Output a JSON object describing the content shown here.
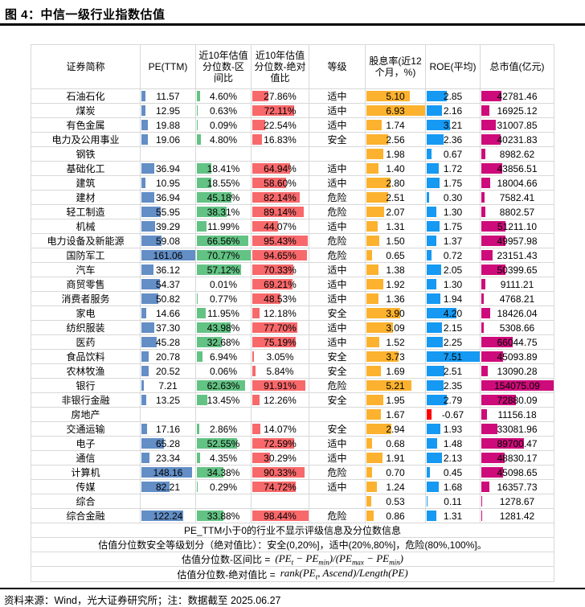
{
  "title": "图 4：中信一级行业指数估值",
  "footer": "资料来源：Wind，光大证券研究所；注：数据截至 2025.06.27",
  "colors": {
    "pe_bar": "#638EC6",
    "range_bar": "#63C384",
    "abs_bar": "#F8696B",
    "dividend_bar": "#FCB22E",
    "roe_bar": "#1599F2",
    "roe_negative_bar": "#FF0000",
    "mktcap_bar": "#CE0B7A",
    "grade_safe": "安全",
    "grade_medium": "适中",
    "grade_risky": "危险"
  },
  "table": {
    "headers": [
      "证券简称",
      "PE(TTM)",
      "近10年估值分位数-区间比",
      "近10年估值分位数-绝对值比",
      "等级",
      "股息率(近12个月，%)",
      "ROE(平均)",
      "总市值(亿元)"
    ],
    "rows": [
      {
        "name": "石油石化",
        "pe": 11.57,
        "range_pct": 4.6,
        "abs_pct": 27.86,
        "grade": "适中",
        "dividend": 5.1,
        "roe": 2.85,
        "mktcap": 42781.46
      },
      {
        "name": "煤炭",
        "pe": 12.95,
        "range_pct": 0.63,
        "abs_pct": 72.11,
        "grade": "适中",
        "dividend": 6.93,
        "roe": 2.16,
        "mktcap": 16925.12
      },
      {
        "name": "有色金属",
        "pe": 19.88,
        "range_pct": 0.09,
        "abs_pct": 22.54,
        "grade": "适中",
        "dividend": 1.74,
        "roe": 3.21,
        "mktcap": 31007.85
      },
      {
        "name": "电力及公用事业",
        "pe": 19.06,
        "range_pct": 4.8,
        "abs_pct": 16.83,
        "grade": "安全",
        "dividend": 2.56,
        "roe": 2.36,
        "mktcap": 40231.83
      },
      {
        "name": "钢铁",
        "pe": null,
        "range_pct": null,
        "abs_pct": null,
        "grade": "",
        "dividend": 1.98,
        "roe": 0.67,
        "mktcap": 8982.62
      },
      {
        "name": "基础化工",
        "pe": 36.94,
        "range_pct": 18.41,
        "abs_pct": 64.94,
        "grade": "适中",
        "dividend": 1.4,
        "roe": 1.72,
        "mktcap": 43856.51
      },
      {
        "name": "建筑",
        "pe": 10.95,
        "range_pct": 18.55,
        "abs_pct": 58.6,
        "grade": "适中",
        "dividend": 2.8,
        "roe": 1.75,
        "mktcap": 18004.66
      },
      {
        "name": "建材",
        "pe": 36.94,
        "range_pct": 45.18,
        "abs_pct": 82.14,
        "grade": "危险",
        "dividend": 2.51,
        "roe": 0.3,
        "mktcap": 7582.41
      },
      {
        "name": "轻工制造",
        "pe": 55.95,
        "range_pct": 38.31,
        "abs_pct": 89.14,
        "grade": "危险",
        "dividend": 2.07,
        "roe": 1.3,
        "mktcap": 8802.57
      },
      {
        "name": "机械",
        "pe": 39.29,
        "range_pct": 11.99,
        "abs_pct": 44.07,
        "grade": "适中",
        "dividend": 1.31,
        "roe": 1.75,
        "mktcap": 51211.1
      },
      {
        "name": "电力设备及新能源",
        "pe": 59.08,
        "range_pct": 66.56,
        "abs_pct": 95.43,
        "grade": "危险",
        "dividend": 1.5,
        "roe": 1.37,
        "mktcap": 49957.98
      },
      {
        "name": "国防军工",
        "pe": 161.06,
        "range_pct": 70.77,
        "abs_pct": 94.65,
        "grade": "危险",
        "dividend": 0.65,
        "roe": 0.72,
        "mktcap": 23151.43
      },
      {
        "name": "汽车",
        "pe": 36.12,
        "range_pct": 57.12,
        "abs_pct": 70.33,
        "grade": "适中",
        "dividend": 1.38,
        "roe": 2.05,
        "mktcap": 50399.65
      },
      {
        "name": "商贸零售",
        "pe": 54.37,
        "range_pct": 0.01,
        "abs_pct": 69.21,
        "grade": "适中",
        "dividend": 1.92,
        "roe": 1.3,
        "mktcap": 9111.21
      },
      {
        "name": "消费者服务",
        "pe": 50.82,
        "range_pct": 0.77,
        "abs_pct": 48.53,
        "grade": "适中",
        "dividend": 1.36,
        "roe": 1.94,
        "mktcap": 4768.21
      },
      {
        "name": "家电",
        "pe": 14.66,
        "range_pct": 11.95,
        "abs_pct": 12.18,
        "grade": "安全",
        "dividend": 3.9,
        "roe": 4.2,
        "mktcap": 18426.04
      },
      {
        "name": "纺织服装",
        "pe": 37.3,
        "range_pct": 43.98,
        "abs_pct": 77.7,
        "grade": "适中",
        "dividend": 3.09,
        "roe": 2.15,
        "mktcap": 5308.66
      },
      {
        "name": "医药",
        "pe": 45.28,
        "range_pct": 32.68,
        "abs_pct": 75.19,
        "grade": "适中",
        "dividend": 1.52,
        "roe": 2.25,
        "mktcap": 66044.75
      },
      {
        "name": "食品饮料",
        "pe": 20.78,
        "range_pct": 6.94,
        "abs_pct": 3.05,
        "grade": "安全",
        "dividend": 3.73,
        "roe": 7.51,
        "mktcap": 45093.89
      },
      {
        "name": "农林牧渔",
        "pe": 20.52,
        "range_pct": 0.06,
        "abs_pct": 5.84,
        "grade": "安全",
        "dividend": 1.69,
        "roe": 2.51,
        "mktcap": 13090.28
      },
      {
        "name": "银行",
        "pe": 7.21,
        "range_pct": 62.63,
        "abs_pct": 91.91,
        "grade": "危险",
        "dividend": 5.21,
        "roe": 2.35,
        "mktcap": 154075.09
      },
      {
        "name": "非银行金融",
        "pe": 13.25,
        "range_pct": 13.45,
        "abs_pct": 12.26,
        "grade": "安全",
        "dividend": 1.95,
        "roe": 2.79,
        "mktcap": 72880.09
      },
      {
        "name": "房地产",
        "pe": null,
        "range_pct": null,
        "abs_pct": null,
        "grade": "",
        "dividend": 1.67,
        "roe": -0.67,
        "mktcap": 11156.18
      },
      {
        "name": "交通运输",
        "pe": 17.16,
        "range_pct": 2.86,
        "abs_pct": 14.07,
        "grade": "安全",
        "dividend": 2.94,
        "roe": 1.93,
        "mktcap": 33081.96
      },
      {
        "name": "电子",
        "pe": 65.28,
        "range_pct": 52.55,
        "abs_pct": 72.59,
        "grade": "适中",
        "dividend": 0.68,
        "roe": 1.48,
        "mktcap": 89700.47
      },
      {
        "name": "通信",
        "pe": 23.34,
        "range_pct": 4.35,
        "abs_pct": 30.29,
        "grade": "适中",
        "dividend": 1.91,
        "roe": 2.13,
        "mktcap": 48830.17
      },
      {
        "name": "计算机",
        "pe": 148.16,
        "range_pct": 34.38,
        "abs_pct": 90.33,
        "grade": "危险",
        "dividend": 0.7,
        "roe": 0.45,
        "mktcap": 45098.65
      },
      {
        "name": "传媒",
        "pe": 82.21,
        "range_pct": 0.29,
        "abs_pct": 74.72,
        "grade": "适中",
        "dividend": 1.24,
        "roe": 1.68,
        "mktcap": 16357.73
      },
      {
        "name": "综合",
        "pe": null,
        "range_pct": null,
        "abs_pct": null,
        "grade": "",
        "dividend": 0.53,
        "roe": 0.11,
        "mktcap": 1278.67
      },
      {
        "name": "综合金融",
        "pe": 122.24,
        "range_pct": 33.88,
        "abs_pct": 98.44,
        "grade": "危险",
        "dividend": 0.86,
        "roe": 1.31,
        "mktcap": 1281.42
      }
    ],
    "notes": [
      {
        "text": "PE_TTM小于0的行业不显示评级信息及分位数信息"
      },
      {
        "text": "估值分位数安全等级划分（绝对值比）：安全(0,20%]，适中(20%,80%]，危险(80%,100%]。"
      },
      {
        "label": "估值分位数-区间比 =",
        "formula_parts": [
          [
            "t",
            "(PE"
          ],
          [
            "s",
            "t"
          ],
          [
            "t",
            " − PE"
          ],
          [
            "s",
            "min"
          ],
          [
            "t",
            ")/(PE"
          ],
          [
            "s",
            "max"
          ],
          [
            "t",
            " − PE"
          ],
          [
            "s",
            "min"
          ],
          [
            "t",
            ")"
          ]
        ]
      },
      {
        "label": "估值分位数-绝对值比 =",
        "formula_parts": [
          [
            "t",
            "rank(PE"
          ],
          [
            "s",
            "t"
          ],
          [
            "t",
            ", Ascend)/Length(PE)"
          ]
        ]
      }
    ]
  }
}
